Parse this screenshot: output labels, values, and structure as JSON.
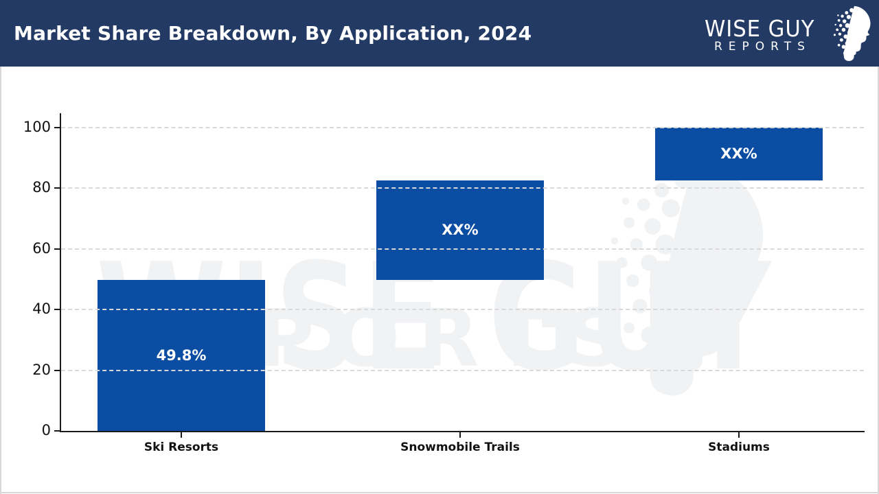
{
  "header": {
    "title": "Market Share Breakdown, By Application, 2024",
    "logo": {
      "line1": "WISE GUY",
      "line2": "REPORTS"
    }
  },
  "watermark": {
    "line1": "WISE GUY",
    "line2": "REPORTS"
  },
  "colors": {
    "header_bg": "#233a64",
    "bar": "#0b4da2",
    "bar_label": "#ffffff",
    "grid": "#d9d9d9",
    "axis": "#1a1a1a",
    "watermark": "#f1f2f4",
    "card_edge": "#d8d8d8"
  },
  "chart_data": {
    "type": "bar",
    "variant": "floating-segment-bars",
    "title": "Market Share Breakdown, By Application, 2024",
    "categories": [
      "Ski Resorts",
      "Snowmobile Trails",
      "Stadiums"
    ],
    "segments": [
      {
        "category": "Ski Resorts",
        "start": 0,
        "end": 49.8,
        "label": "49.8%"
      },
      {
        "category": "Snowmobile Trails",
        "start": 49.8,
        "end": 82.6,
        "label": "XX%"
      },
      {
        "category": "Stadiums",
        "start": 82.6,
        "end": 100,
        "label": "XX%"
      }
    ],
    "ylim": [
      0,
      100
    ],
    "yticks": [
      0,
      20,
      40,
      60,
      80,
      100
    ],
    "xlabel": "",
    "ylabel": "",
    "grid": "horizontal dashed",
    "legend": "none"
  }
}
